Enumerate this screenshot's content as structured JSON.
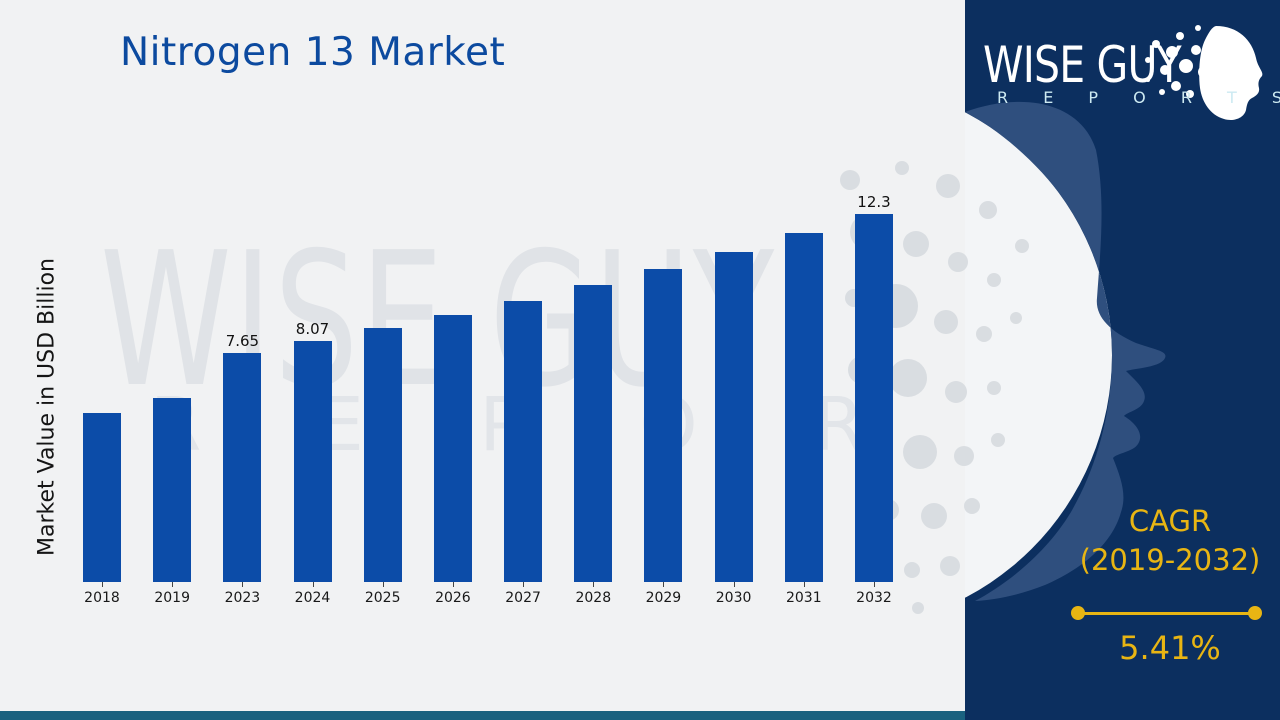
{
  "title": "Nitrogen 13 Market",
  "y_axis_label": "Market Value in USD Billion",
  "logo": {
    "line1": "WISE GUY",
    "line2": "R E P O R T S"
  },
  "watermark": {
    "line1": "WISE GUY",
    "line2": "R E P O R T S"
  },
  "cagr": {
    "label": "CAGR",
    "range": "(2019-2032)",
    "value": "5.41%"
  },
  "chart_data": {
    "type": "bar",
    "title": "Nitrogen 13 Market",
    "xlabel": "",
    "ylabel": "Market Value in USD Billion",
    "categories": [
      "2018",
      "2019",
      "2023",
      "2024",
      "2025",
      "2026",
      "2027",
      "2028",
      "2029",
      "2030",
      "2031",
      "2032"
    ],
    "values": [
      5.65,
      6.14,
      7.65,
      8.07,
      8.48,
      8.94,
      9.41,
      9.94,
      10.47,
      11.04,
      11.68,
      12.3
    ],
    "bar_labels": [
      "",
      "",
      "7.65",
      "8.07",
      "",
      "",
      "",
      "",
      "",
      "",
      "",
      "12.3"
    ],
    "ylim": [
      0,
      13
    ],
    "grid": false,
    "legend": "none",
    "bar_color": "#0c4ca8"
  },
  "colors": {
    "background": "#f1f2f3",
    "bar": "#0c4ca8",
    "title_blue": "#0c4a9f",
    "navy_panel": "#0c2f5f",
    "gold_accent": "#e8b513",
    "teal_strip": "#1a617f",
    "watermark_gray": "#e0e3e7",
    "face_blue": "#2f4f7e"
  }
}
